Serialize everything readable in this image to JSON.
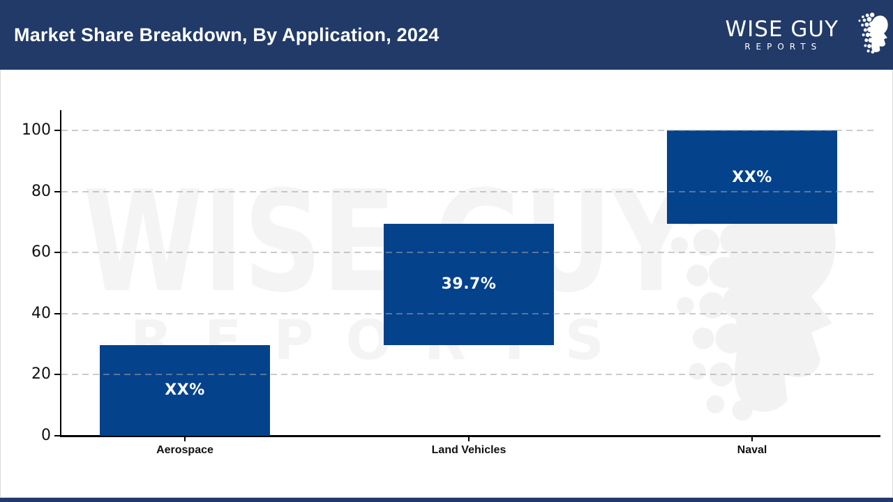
{
  "header": {
    "title": "Market Share Breakdown, By Application, 2024",
    "logo": {
      "line1": "WISE GUY",
      "line2": "REPORTS"
    }
  },
  "watermark": {
    "line1": "WISE GUY",
    "line2": "REPORTS"
  },
  "chart_data": {
    "type": "bar",
    "subtype": "floating-waterfall",
    "title": "Market Share Breakdown, By Application, 2024",
    "categories": [
      "Aerospace",
      "Land Vehicles",
      "Naval"
    ],
    "segments": [
      {
        "category": "Aerospace",
        "start": 0,
        "end": 29.7,
        "label": "XX%"
      },
      {
        "category": "Land Vehicles",
        "start": 29.7,
        "end": 69.4,
        "label": "39.7%"
      },
      {
        "category": "Naval",
        "start": 69.4,
        "end": 100,
        "label": "XX%"
      }
    ],
    "yticks": [
      0,
      20,
      40,
      60,
      80,
      100
    ],
    "ylim": [
      0,
      106
    ],
    "xlabel": "",
    "ylabel": "",
    "legend": "none",
    "grid": "horizontal-dashed",
    "bar_color": "#04428c",
    "bar_label_color": "#ffffff"
  },
  "colors": {
    "header_bg": "#213a68",
    "footer_bg": "#213a68",
    "bar": "#04428c",
    "grid": "#d9d9d9",
    "watermark": "#f4f4f4",
    "axis": "#000000"
  }
}
